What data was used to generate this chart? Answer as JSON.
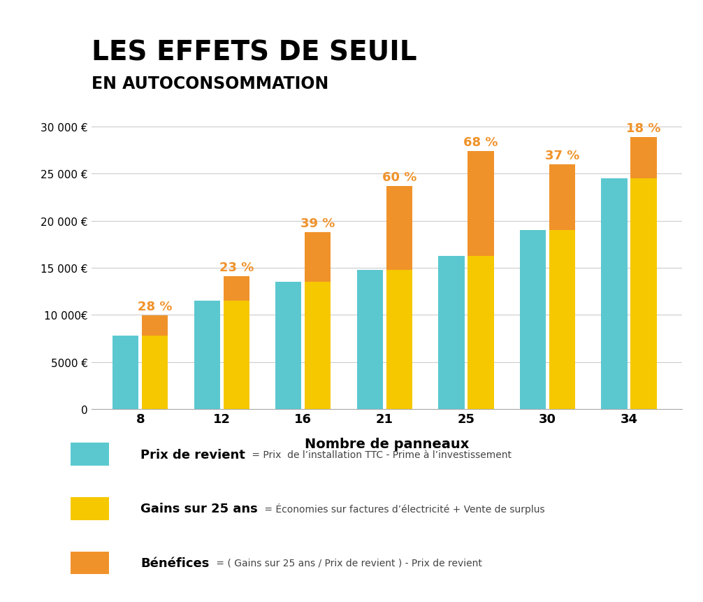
{
  "categories": [
    8,
    12,
    16,
    21,
    25,
    30,
    34
  ],
  "prix_de_revient": [
    7800,
    11500,
    13500,
    14800,
    16300,
    19000,
    24500
  ],
  "gains_totaux": [
    9984,
    14145,
    18765,
    23680,
    27384,
    26030,
    28910
  ],
  "percentages": [
    "28 %",
    "23 %",
    "39 %",
    "60 %",
    "68 %",
    "37 %",
    "18 %"
  ],
  "color_teal": "#5BC8D0",
  "color_yellow": "#F5C800",
  "color_orange": "#F0922A",
  "color_pct": "#F0922A",
  "title_line1": "LES EFFETS DE SEUIL",
  "title_line2": "EN AUTOCONSOMMATION",
  "xlabel": "Nombre de panneaux",
  "yticks": [
    0,
    5000,
    10000,
    15000,
    20000,
    25000,
    30000
  ],
  "ytick_labels": [
    "0",
    "5000 €",
    "10 000€",
    "15 000 €",
    "20 000 €",
    "25 000 €",
    "30 000 €"
  ],
  "legend": [
    {
      "label_bold": "Prix de revient",
      "label_rest": " = Prix  de l’installation TTC - Prime à l’investissement",
      "color": "#5BC8D0"
    },
    {
      "label_bold": "Gains sur 25 ans",
      "label_rest": " = Économies sur factures d’électricité + Vente de surplus",
      "color": "#F5C800"
    },
    {
      "label_bold": "Bénéfices",
      "label_rest": " = ( Gains sur 25 ans / Prix de revient ) - Prix de revient",
      "color": "#F0922A"
    }
  ],
  "bar_width": 0.32,
  "background_color": "#ffffff"
}
